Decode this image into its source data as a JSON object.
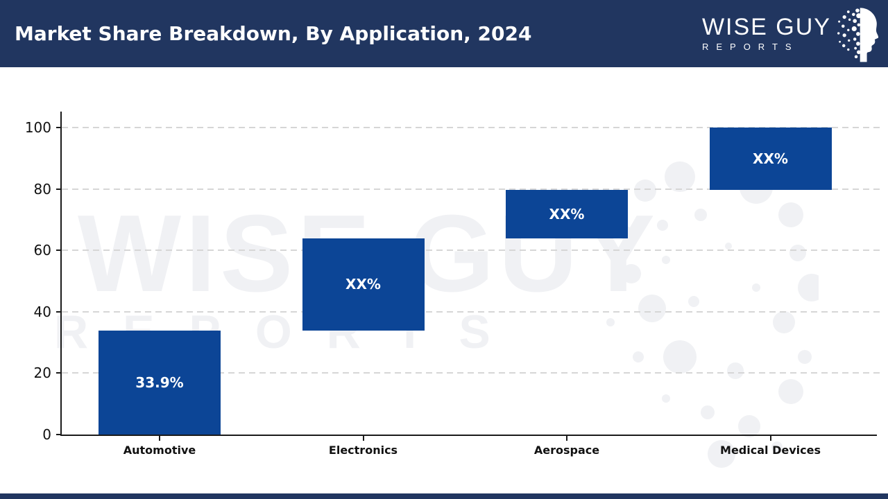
{
  "header": {
    "title": "Market Share Breakdown, By Application, 2024",
    "logo": {
      "wordmark": "WISE GUY",
      "subtext": "REPORTS"
    }
  },
  "watermark": {
    "line1": "WISE GUY",
    "line2": "REPORTS"
  },
  "colors": {
    "header_bg": "#213660",
    "bar_fill": "#0c4596",
    "bar_label_text": "#ffffff",
    "grid_line": "#d6d6d6",
    "axis_line": "#1a1a1a",
    "tick_text": "#111111",
    "watermark": "#f0f1f4"
  },
  "chart_data": {
    "type": "bar",
    "subtype": "waterfall",
    "title": "Market Share Breakdown, By Application, 2024",
    "xlabel": "",
    "ylabel": "",
    "ylim": [
      0,
      105
    ],
    "yticks": [
      0,
      20,
      40,
      60,
      80,
      100
    ],
    "grid": "horizontal-dashed",
    "legend": "none",
    "categories": [
      "Automotive",
      "Electronics",
      "Aerospace",
      "Medical Devices"
    ],
    "segments": [
      {
        "category": "Automotive",
        "start": 0,
        "end": 33.9,
        "value": 33.9,
        "label": "33.9%"
      },
      {
        "category": "Electronics",
        "start": 33.9,
        "end": 63.9,
        "value": 30.0,
        "label": "XX%"
      },
      {
        "category": "Aerospace",
        "start": 63.9,
        "end": 79.7,
        "value": 15.8,
        "label": "XX%"
      },
      {
        "category": "Medical Devices",
        "start": 79.7,
        "end": 100,
        "value": 20.3,
        "label": "XX%"
      }
    ]
  }
}
